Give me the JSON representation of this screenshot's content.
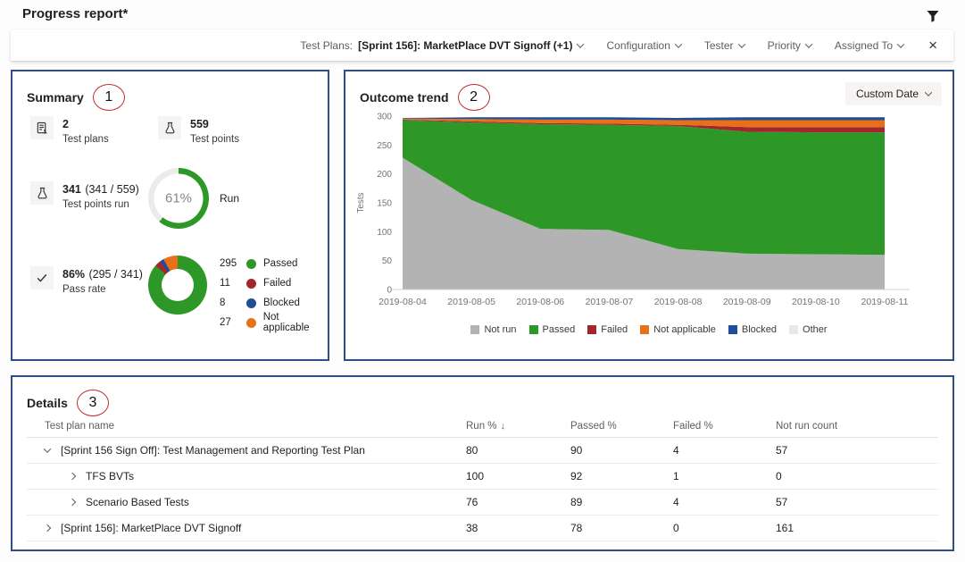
{
  "page": {
    "title": "Progress report*"
  },
  "filter_bar": {
    "test_plans_label": "Test Plans:",
    "test_plans_value": "[Sprint 156]: MarketPlace DVT Signoff (+1)",
    "dropdowns": [
      "Configuration",
      "Tester",
      "Priority",
      "Assigned To"
    ],
    "close_label": "×"
  },
  "annotations": {
    "summary": "1",
    "outcome": "2",
    "details": "3",
    "color": "#c22f2e"
  },
  "colors": {
    "card_border": "#2e4e85",
    "passed": "#2d9827",
    "failed": "#a4262c",
    "blocked": "#1f4e96",
    "not_applicable": "#e87017",
    "not_run": "#b3b3b3",
    "other": "#e8e8e8"
  },
  "summary": {
    "title": "Summary",
    "stats": [
      {
        "icon": "test-plan-icon",
        "value": "2",
        "label": "Test plans"
      },
      {
        "icon": "flask-icon",
        "value": "559",
        "label": "Test points"
      },
      {
        "icon": "flask-icon",
        "value": "341",
        "value_suffix": "(341 / 559)",
        "label": "Test points run"
      },
      {
        "icon": "check-icon",
        "value": "86%",
        "value_suffix": "(295 / 341)",
        "label": "Pass rate"
      }
    ],
    "run_donut": {
      "percent": 61,
      "percent_label": "61%",
      "label": "Run",
      "color": "#2d9827",
      "track_color": "#ebebeb"
    },
    "outcome_donut": {
      "segments": [
        {
          "label": "Passed",
          "count": 295,
          "color": "#2d9827"
        },
        {
          "label": "Failed",
          "count": 11,
          "color": "#a4262c"
        },
        {
          "label": "Blocked",
          "count": 8,
          "color": "#1f4e96"
        },
        {
          "label": "Not applicable",
          "count": 27,
          "color": "#e87017"
        }
      ]
    }
  },
  "outcome_trend": {
    "title": "Outcome trend",
    "date_button": "Custom Date"
  },
  "chart_data": {
    "type": "area",
    "stacked": true,
    "title": "Outcome trend",
    "x": [
      "2019-08-04",
      "2019-08-05",
      "2019-08-06",
      "2019-08-07",
      "2019-08-08",
      "2019-08-09",
      "2019-08-10",
      "2019-08-11"
    ],
    "xlabel": "",
    "ylabel": "Tests",
    "ylim": [
      0,
      300
    ],
    "yticks": [
      0,
      50,
      100,
      150,
      200,
      250,
      300
    ],
    "grid": false,
    "legend_position": "bottom",
    "series": [
      {
        "name": "Not run",
        "color": "#b3b3b3",
        "values": [
          228,
          155,
          105,
          103,
          70,
          62,
          61,
          60
        ]
      },
      {
        "name": "Passed",
        "color": "#2d9827",
        "values": [
          65,
          134,
          181,
          182,
          213,
          211,
          211,
          212
        ]
      },
      {
        "name": "Failed",
        "color": "#a4262c",
        "values": [
          1,
          2,
          2,
          2,
          2,
          8,
          9,
          9
        ]
      },
      {
        "name": "Not applicable",
        "color": "#e87017",
        "values": [
          2,
          4,
          6,
          7,
          8,
          12,
          12,
          12
        ]
      },
      {
        "name": "Blocked",
        "color": "#1f4e96",
        "values": [
          1,
          3,
          4,
          4,
          4,
          5,
          5,
          5
        ]
      }
    ],
    "legend_items": [
      {
        "name": "Not run",
        "color": "#b3b3b3"
      },
      {
        "name": "Passed",
        "color": "#2d9827"
      },
      {
        "name": "Failed",
        "color": "#a4262c"
      },
      {
        "name": "Not applicable",
        "color": "#e87017"
      },
      {
        "name": "Blocked",
        "color": "#1f4e96"
      },
      {
        "name": "Other",
        "color": "#e8e8e8"
      }
    ]
  },
  "details": {
    "title": "Details",
    "columns": {
      "name": "Test plan name",
      "run": "Run %",
      "passed": "Passed %",
      "failed": "Failed %",
      "notrun": "Not run count"
    },
    "sort_icon": "↓",
    "rows": [
      {
        "name": "[Sprint 156 Sign Off]: Test Management and Reporting Test Plan",
        "level": 0,
        "expanded": true,
        "run": "80",
        "passed": "90",
        "failed": "4",
        "notrun": "57"
      },
      {
        "name": "TFS BVTs",
        "level": 1,
        "expanded": false,
        "run": "100",
        "passed": "92",
        "failed": "1",
        "notrun": "0"
      },
      {
        "name": "Scenario Based Tests",
        "level": 1,
        "expanded": false,
        "run": "76",
        "passed": "89",
        "failed": "4",
        "notrun": "57"
      },
      {
        "name": "[Sprint 156]: MarketPlace DVT Signoff",
        "level": 0,
        "expanded": false,
        "run": "38",
        "passed": "78",
        "failed": "0",
        "notrun": "161"
      }
    ]
  }
}
